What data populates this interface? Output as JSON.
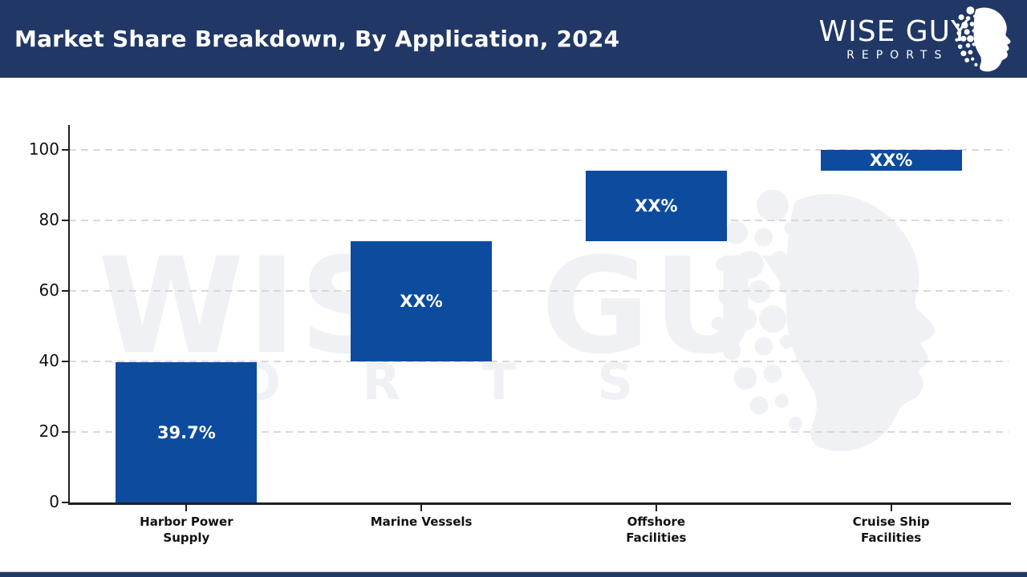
{
  "header": {
    "title": "Market Share Breakdown, By Application, 2024",
    "logo": {
      "brand_line1": "WISE GUY",
      "brand_line2": "REPORTS"
    }
  },
  "watermark": {
    "line1": "WISE GUY",
    "line2": "P O R T S"
  },
  "colors": {
    "header_bg": "#213866",
    "footer_bg": "#213866",
    "bar": "#0c4b9e",
    "grid": "#d9d9d9",
    "axis": "#1f1f1f",
    "bar_label": "#ffffff",
    "tick_label": "#111111",
    "watermark": "#f0f1f4",
    "hairline": "#cccccc"
  },
  "chart_data": {
    "type": "bar",
    "subtype": "waterfall",
    "title": "Market Share Breakdown, By Application, 2024",
    "categories": [
      "Harbor Power\nSupply",
      "Marine Vessels",
      "Offshore\nFacilities",
      "Cruise Ship\nFacilities"
    ],
    "series": [
      {
        "name": "Market Share",
        "segments": [
          {
            "category": "Harbor Power Supply",
            "start": 0,
            "end": 39.7,
            "label": "39.7%"
          },
          {
            "category": "Marine Vessels",
            "start": 40,
            "end": 74,
            "label": "XX%"
          },
          {
            "category": "Offshore Facilities",
            "start": 74,
            "end": 94,
            "label": "XX%"
          },
          {
            "category": "Cruise Ship Facilities",
            "start": 94,
            "end": 100,
            "label": "XX%"
          }
        ]
      }
    ],
    "ylim": [
      0,
      100
    ],
    "yticks": [
      0,
      20,
      40,
      60,
      80,
      100
    ],
    "xlabel": "",
    "ylabel": "",
    "grid": "horizontal-dashed",
    "legend": "none"
  }
}
